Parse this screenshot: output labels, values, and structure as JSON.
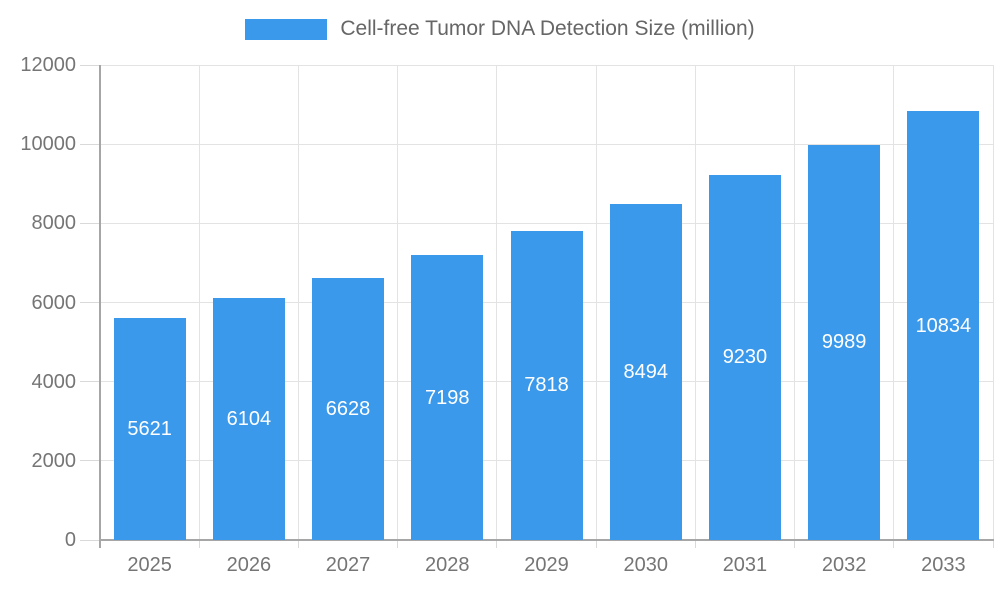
{
  "chart_data": {
    "type": "bar",
    "title": "Cell-free Tumor DNA Detection Size (million)",
    "legend_position": "top-center",
    "categories": [
      "2025",
      "2026",
      "2027",
      "2028",
      "2029",
      "2030",
      "2031",
      "2032",
      "2033"
    ],
    "series": [
      {
        "name": "Cell-free Tumor DNA Detection Size (million)",
        "values": [
          5621,
          6104,
          6628,
          7198,
          7818,
          8494,
          9230,
          9989,
          10834
        ]
      }
    ],
    "value_labels_shown": true,
    "value_label_position": "inside-center",
    "xlabel": "",
    "ylabel": "",
    "ylim": [
      0,
      12000
    ],
    "yticks": [
      0,
      2000,
      4000,
      6000,
      8000,
      10000,
      12000
    ],
    "grid": true,
    "colors": {
      "bar": "#3b99ec",
      "gridline": "#e3e3e3",
      "axis_line": "#a6a6a6",
      "tick": "#d9d9d9",
      "axis_label": "#757575",
      "value_label": "#ffffff",
      "legend_text": "#666666"
    }
  }
}
